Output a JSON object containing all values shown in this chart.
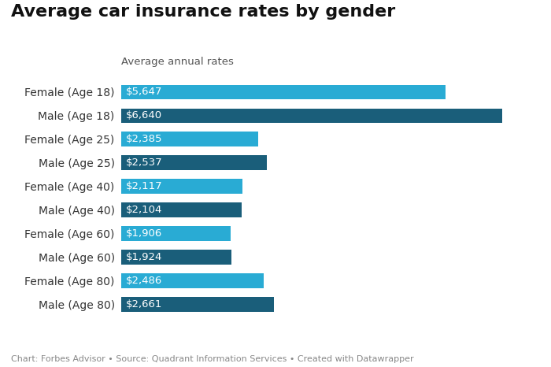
{
  "title": "Average car insurance rates by gender",
  "subtitle": "Average annual rates",
  "footnote": "Chart: Forbes Advisor • Source: Quadrant Information Services • Created with Datawrapper",
  "categories": [
    "Female (Age 18)",
    "Male (Age 18)",
    "Female (Age 25)",
    "Male (Age 25)",
    "Female (Age 40)",
    "Male (Age 40)",
    "Female (Age 60)",
    "Male (Age 60)",
    "Female (Age 80)",
    "Male (Age 80)"
  ],
  "values": [
    5647,
    6640,
    2385,
    2537,
    2117,
    2104,
    1906,
    1924,
    2486,
    2661
  ],
  "labels": [
    "$5,647",
    "$6,640",
    "$2,385",
    "$2,537",
    "$2,117",
    "$2,104",
    "$1,906",
    "$1,924",
    "$2,486",
    "$2,661"
  ],
  "colors": [
    "#29ABD4",
    "#1A5E7A",
    "#29ABD4",
    "#1A5E7A",
    "#29ABD4",
    "#1A5E7A",
    "#29ABD4",
    "#1A5E7A",
    "#29ABD4",
    "#1A5E7A"
  ],
  "background_color": "#ffffff",
  "xlim": [
    0,
    7200
  ],
  "bar_height": 0.62,
  "title_fontsize": 16,
  "subtitle_fontsize": 9.5,
  "label_fontsize": 9.5,
  "footnote_fontsize": 8,
  "ytick_fontsize": 10
}
